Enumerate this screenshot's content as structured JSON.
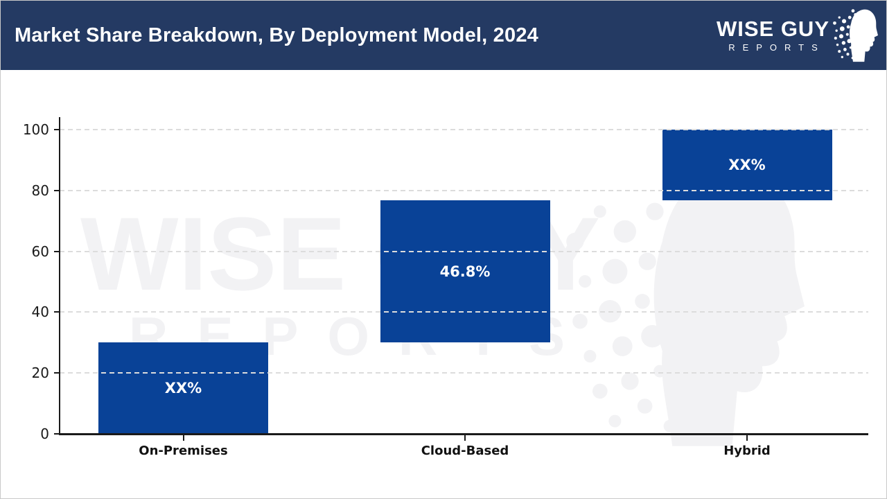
{
  "header": {
    "title": "Market Share Breakdown, By Deployment Model, 2024",
    "logo": {
      "wordmark": "WISE GUY",
      "subtext": "REPORTS"
    }
  },
  "watermark": {
    "wordmark": "WISE GUY",
    "subtext": "REPORTS"
  },
  "chart_data": {
    "type": "bar",
    "subtype": "floating_segment_waterfall",
    "title": "Market Share Breakdown, By Deployment Model, 2024",
    "categories": [
      "On-Premises",
      "Cloud-Based",
      "Hybrid"
    ],
    "bars": [
      {
        "category": "On-Premises",
        "start": 0,
        "end": 30,
        "label": "XX%"
      },
      {
        "category": "Cloud-Based",
        "start": 30,
        "end": 76.8,
        "label": "46.8%"
      },
      {
        "category": "Hybrid",
        "start": 76.8,
        "end": 100,
        "label": "XX%"
      }
    ],
    "ylim": [
      0,
      100
    ],
    "yticks": [
      0,
      20,
      40,
      60,
      80,
      100
    ],
    "xlabel": "",
    "ylabel": "",
    "grid": "horizontal-dashed",
    "legend": "none",
    "bar_color": "#094297",
    "bar_label_color": "#ffffff"
  },
  "colors": {
    "header_bg": "#243a63",
    "bar": "#094297",
    "grid": "#dcdcdc",
    "axis": "#1a1a1a",
    "watermark": "#f2f2f4",
    "page_border": "#c9c9c9"
  }
}
